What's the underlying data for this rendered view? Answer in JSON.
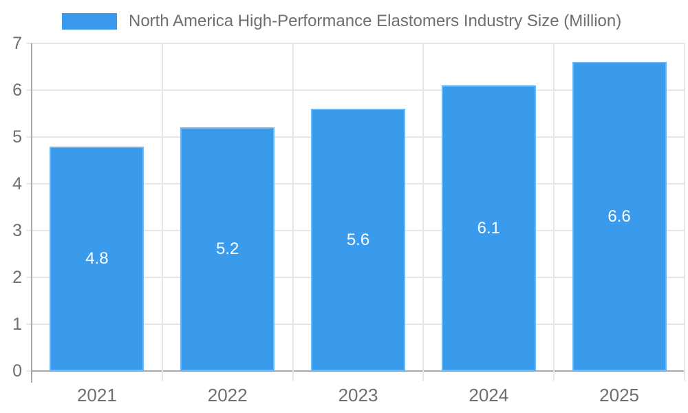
{
  "chart_data": {
    "type": "bar",
    "title": "",
    "legend": "North America High-Performance Elastomers Industry Size (Million)",
    "legend_position": "top",
    "categories": [
      "2021",
      "2022",
      "2023",
      "2024",
      "2025"
    ],
    "values": [
      4.8,
      5.2,
      5.6,
      6.1,
      6.6
    ],
    "value_labels": [
      "4.8",
      "5.2",
      "5.6",
      "6.1",
      "6.6"
    ],
    "yticks": [
      "0",
      "1",
      "2",
      "3",
      "4",
      "5",
      "6",
      "7"
    ],
    "ylim": [
      0,
      7
    ],
    "xlabel": "",
    "ylabel": "",
    "grid": true,
    "colors": {
      "bar": "#3a9aec",
      "value_label_text": "#ffffff",
      "legend_text": "#6e6e6e",
      "tick_text": "#6e6e6e",
      "gridline": "#e6e6e6",
      "axis_line": "#a8a8a8",
      "background": "#ffffff"
    }
  }
}
